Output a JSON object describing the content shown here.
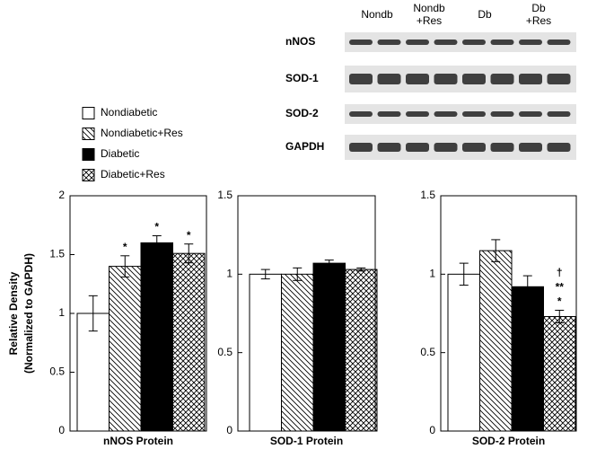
{
  "blot": {
    "lanes": [
      [
        "Nondb"
      ],
      [
        "Nondb",
        "+Res"
      ],
      [
        "Db"
      ],
      [
        "Db",
        "+Res"
      ]
    ],
    "rows": [
      "nNOS",
      "SOD-1",
      "SOD-2",
      "GAPDH"
    ]
  },
  "legend": [
    {
      "name": "Nondiabetic",
      "pattern": "none"
    },
    {
      "name": "Nondiabetic+Res",
      "pattern": "hatch"
    },
    {
      "name": "Diabetic",
      "pattern": "solid"
    },
    {
      "name": "Diabetic+Res",
      "pattern": "cross"
    }
  ],
  "ylabel": [
    "Relative Density",
    "(Normalized to GAPDH)"
  ],
  "chart_data": [
    {
      "type": "bar",
      "xlabel": "nNOS Protein",
      "values": [
        1.0,
        1.4,
        1.6,
        1.51
      ],
      "errors": [
        0.15,
        0.09,
        0.06,
        0.08
      ],
      "marks": [
        null,
        "*",
        "*",
        "*"
      ],
      "ylim": [
        0,
        2
      ],
      "yticks": [
        0,
        0.5,
        1,
        1.5,
        2
      ]
    },
    {
      "type": "bar",
      "xlabel": "SOD-1 Protein",
      "values": [
        1.0,
        1.0,
        1.07,
        1.03
      ],
      "errors": [
        0.03,
        0.04,
        0.02,
        0.01
      ],
      "marks": [
        null,
        null,
        null,
        null
      ],
      "ylim": [
        0,
        1.5
      ],
      "yticks": [
        0,
        0.5,
        1,
        1.5
      ]
    },
    {
      "type": "bar",
      "xlabel": "SOD-2 Protein",
      "values": [
        1.0,
        1.15,
        0.92,
        0.73
      ],
      "errors": [
        0.07,
        0.07,
        0.07,
        0.04
      ],
      "marks": [
        null,
        null,
        null,
        [
          "†",
          "**",
          "*"
        ]
      ],
      "ylim": [
        0,
        1.5
      ],
      "yticks": [
        0,
        0.5,
        1,
        1.5
      ]
    }
  ]
}
